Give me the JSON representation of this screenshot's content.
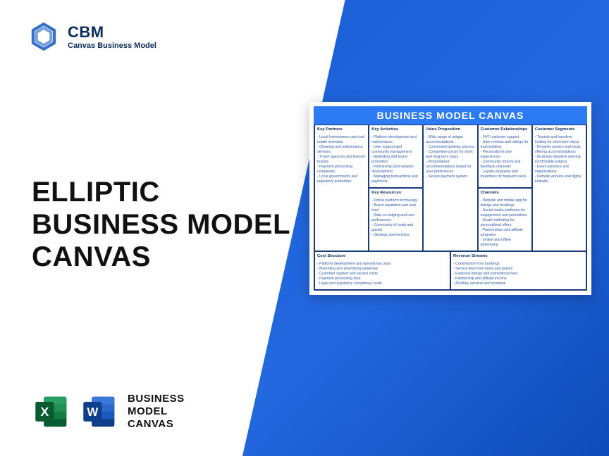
{
  "logo": {
    "brand": "CBM",
    "sub": "Canvas Business Model"
  },
  "title_line1": "ELLIPTIC",
  "title_line2": "BUSINESS MODEL",
  "title_line3": "CANVAS",
  "format_line1": "BUSINESS",
  "format_line2": "MODEL",
  "format_line3": "CANVAS",
  "colors": {
    "bg_blue_a": "#1a5fd6",
    "bg_blue_b": "#0e4bb8",
    "canvas_header": "#2d7bf4",
    "text_dark": "#0a2c5a",
    "cell_text": "#2d5aa8",
    "excel_green": "#107c41",
    "excel_green_dark": "#0a5c30",
    "word_blue": "#185abd",
    "word_blue_dark": "#103f8a",
    "logo_blue": "#1b5fc2"
  },
  "canvas": {
    "header": "BUSINESS MODEL CANVAS",
    "kp": {
      "title": "Key Partners",
      "items": [
        "Local homeowners and real estate investors",
        "Cleaning and maintenance services",
        "Travel agencies and tourism boards",
        "Payment processing companies",
        "Local governments and regulatory authorities"
      ]
    },
    "ka": {
      "title": "Key Activities",
      "items": [
        "Platform development and maintenance",
        "User support and community management",
        "Marketing and brand promotion",
        "Partnership and network development",
        "Managing transactions and payments"
      ]
    },
    "kr": {
      "title": "Key Resources",
      "items": [
        "Online platform technology",
        "Brand reputation and user trust",
        "Data on lodging and user preferences",
        "Community of hosts and guests",
        "Strategic partnerships"
      ]
    },
    "vp": {
      "title": "Value Proposition",
      "items": [
        "Wide range of unique accommodations",
        "Convenient booking process",
        "Competitive prices for short and long-term stays",
        "Personalized recommendations based on user preferences",
        "Secure payment system"
      ]
    },
    "cr": {
      "title": "Customer Relationships",
      "items": [
        "24/7 customer support",
        "User reviews and ratings for trust-building",
        "Personalized user experiences",
        "Community forums and feedback channels",
        "Loyalty programs and incentives for frequent users"
      ]
    },
    "ch": {
      "title": "Channels",
      "items": [
        "Website and mobile app for listings and bookings",
        "Social media platforms for engagement and promotions",
        "Email marketing for personalized offers",
        "Partnerships and affiliate programs",
        "Online and offline advertising"
      ]
    },
    "cs": {
      "title": "Customer Segments",
      "items": [
        "Tourists and travelers looking for short-term stays",
        "Property owners and hosts offering accommodations",
        "Business travelers seeking comfortable lodging",
        "Event planners and organizations",
        "Remote workers and digital nomads"
      ]
    },
    "cost": {
      "title": "Cost Structure",
      "items": [
        "Platform development and operational costs",
        "Marketing and advertising expenses",
        "Customer support and service costs",
        "Payment processing fees",
        "Legal and regulatory compliance costs"
      ]
    },
    "rev": {
      "title": "Revenue Streams",
      "items": [
        "Commission from bookings",
        "Service fees from hosts and guests",
        "Featured listings and promotional fees",
        "Partnership and affiliate income",
        "Ancillary services and products"
      ]
    }
  }
}
